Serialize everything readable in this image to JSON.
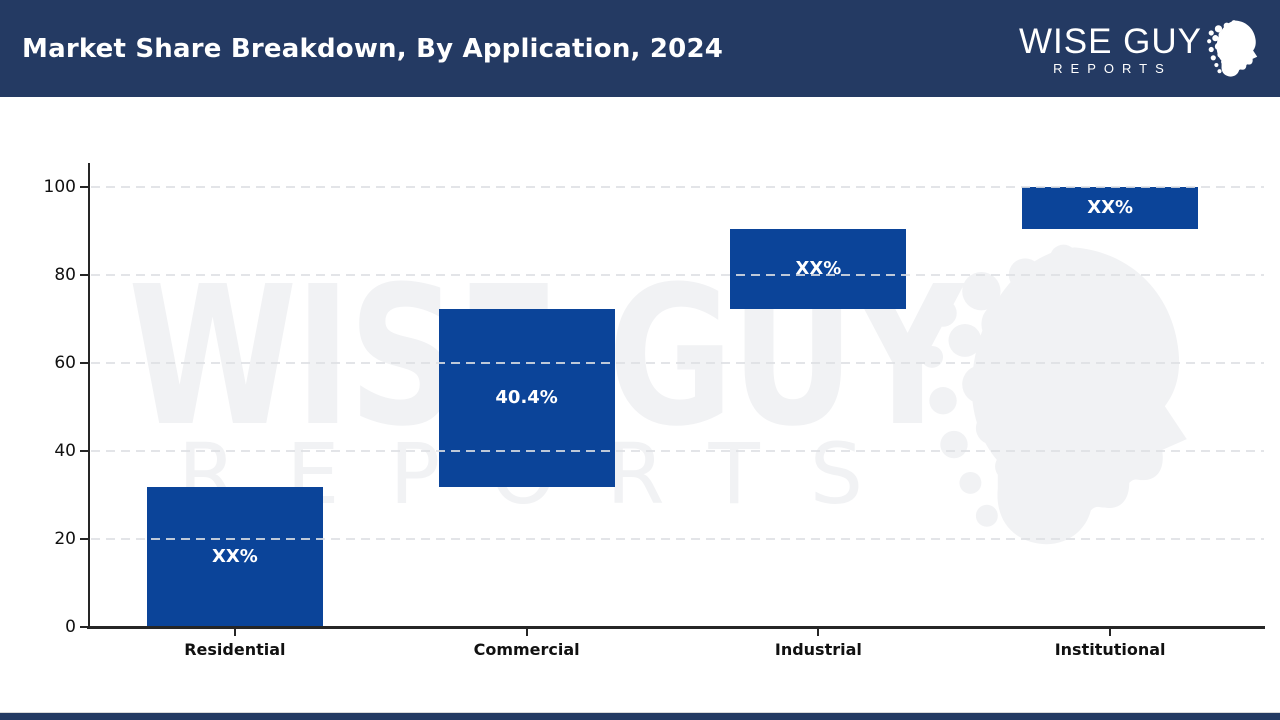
{
  "header": {
    "title": "Market Share Breakdown, By Application, 2024",
    "logo_line1": "WISE GUY",
    "logo_line2": "REPORTS"
  },
  "watermark": {
    "line1": "WISE GUY",
    "line2": "REPORTS"
  },
  "colors": {
    "header_bg": "#243a63",
    "bar_fill": "#0b4499",
    "bar_label_text": "#ffffff",
    "grid": "#e0e2e4",
    "axis": "#262626",
    "tick_label": "#111111",
    "watermark": "#f1f2f4"
  },
  "chart_data": {
    "type": "bar",
    "subtype": "floating-breakdown",
    "title": "Market Share Breakdown, By Application, 2024",
    "categories": [
      "Residential",
      "Commercial",
      "Industrial",
      "Institutional"
    ],
    "bars": [
      {
        "category": "Residential",
        "start": 0,
        "end": 31.8,
        "label": "XX%"
      },
      {
        "category": "Commercial",
        "start": 31.8,
        "end": 72.2,
        "label": "40.4%"
      },
      {
        "category": "Industrial",
        "start": 72.2,
        "end": 90.5,
        "label": "XX%"
      },
      {
        "category": "Institutional",
        "start": 90.5,
        "end": 100,
        "label": "XX%"
      }
    ],
    "yticks": [
      0,
      20,
      40,
      60,
      80,
      100
    ],
    "ylim": [
      0,
      105
    ],
    "xlabel": "",
    "ylabel": "",
    "legend": null,
    "grid": "horizontal-dashed"
  }
}
